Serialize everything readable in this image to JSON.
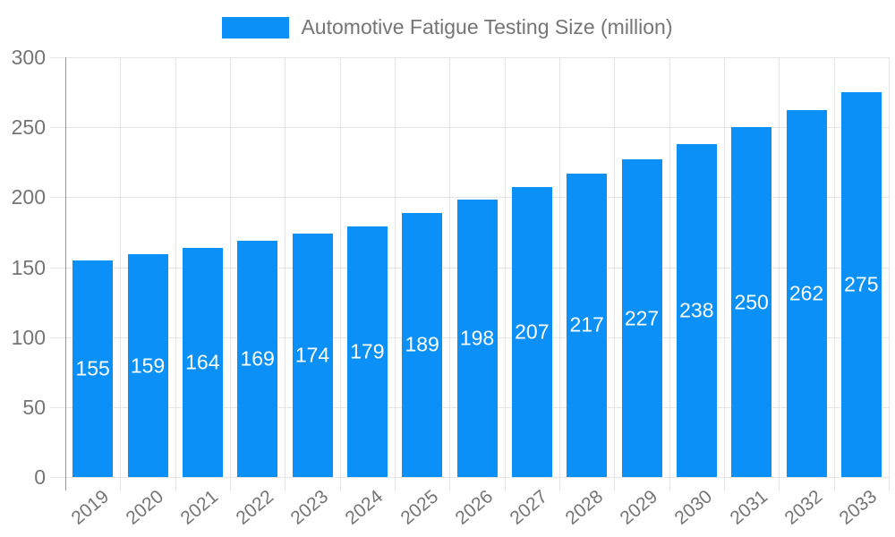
{
  "legend": {
    "label": "Automotive Fatigue Testing Size (million)"
  },
  "colors": {
    "bar": "#0a90f6",
    "grid_line": "#e6e6e6",
    "axis_line": "#999999",
    "tick_label": "#757575",
    "bar_value_label": "#ffffff",
    "background": "#ffffff"
  },
  "chart_data": {
    "type": "bar",
    "title": "Automotive Fatigue Testing Size (million)",
    "series_name": "Automotive Fatigue Testing Size (million)",
    "categories": [
      "2019",
      "2020",
      "2021",
      "2022",
      "2023",
      "2024",
      "2025",
      "2026",
      "2027",
      "2028",
      "2029",
      "2030",
      "2031",
      "2032",
      "2033"
    ],
    "values": [
      155,
      159,
      164,
      169,
      174,
      179,
      189,
      198,
      207,
      217,
      227,
      238,
      250,
      262,
      275
    ],
    "xlabel": "",
    "ylabel": "",
    "ylim": [
      0,
      300
    ],
    "yticks": [
      0,
      50,
      100,
      150,
      200,
      250,
      300
    ],
    "grid": true,
    "legend_position": "top-center",
    "value_label_position": "inside-middle",
    "x_label_rotation_deg": -40
  }
}
